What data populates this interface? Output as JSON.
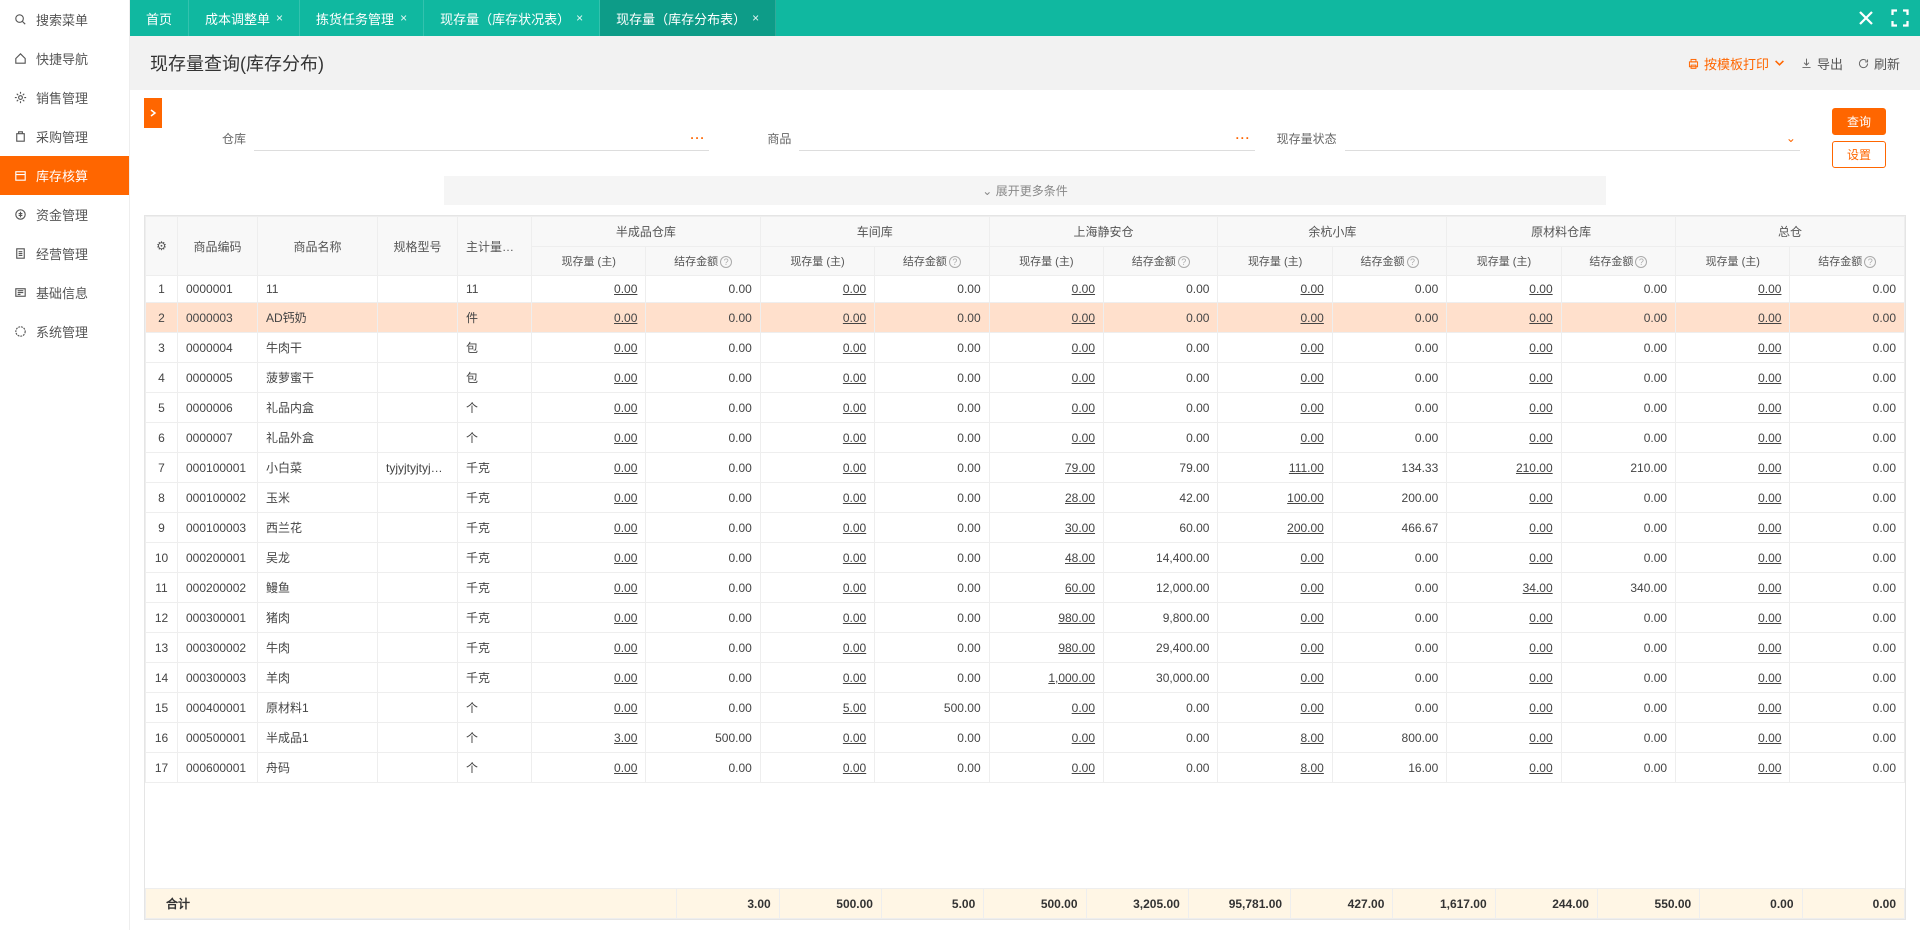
{
  "sidebar": {
    "items": [
      {
        "label": "搜索菜单",
        "icon": "search"
      },
      {
        "label": "快捷导航",
        "icon": "home"
      },
      {
        "label": "销售管理",
        "icon": "gear"
      },
      {
        "label": "采购管理",
        "icon": "bag"
      },
      {
        "label": "库存核算",
        "icon": "box",
        "active": true
      },
      {
        "label": "资金管理",
        "icon": "money"
      },
      {
        "label": "经营管理",
        "icon": "doc"
      },
      {
        "label": "基础信息",
        "icon": "info"
      },
      {
        "label": "系统管理",
        "icon": "sys"
      }
    ]
  },
  "tabs": {
    "items": [
      {
        "label": "首页",
        "closable": false
      },
      {
        "label": "成本调整单",
        "closable": true
      },
      {
        "label": "拣货任务管理",
        "closable": true
      },
      {
        "label": "现存量（库存状况表）",
        "closable": true
      },
      {
        "label": "现存量（库存分布表）",
        "closable": true,
        "active": true
      }
    ]
  },
  "header": {
    "title": "现存量查询(库存分布)",
    "print": "按模板打印",
    "export": "导出",
    "refresh": "刷新"
  },
  "filters": {
    "warehouse": "仓库",
    "product": "商品",
    "status": "现存量状态",
    "query": "查询",
    "settings": "设置",
    "expand": "展开更多条件"
  },
  "table": {
    "headers": {
      "code": "商品编码",
      "name": "商品名称",
      "spec": "规格型号",
      "unit": "主计量单位",
      "groups": [
        "半成品仓库",
        "车间库",
        "上海静安仓",
        "余杭小库",
        "原材料仓库",
        "总仓"
      ],
      "qty": "现存量 (主)",
      "amt": "结存金额"
    },
    "rows": [
      {
        "idx": 1,
        "code": "0000001",
        "name": "11",
        "spec": "",
        "unit": "11",
        "v": [
          [
            "0.00",
            "0.00"
          ],
          [
            "0.00",
            "0.00"
          ],
          [
            "0.00",
            "0.00"
          ],
          [
            "0.00",
            "0.00"
          ],
          [
            "0.00",
            "0.00"
          ],
          [
            "0.00",
            "0.00"
          ]
        ]
      },
      {
        "idx": 2,
        "code": "0000003",
        "name": "AD钙奶",
        "spec": "",
        "unit": "件",
        "hl": true,
        "v": [
          [
            "0.00",
            "0.00"
          ],
          [
            "0.00",
            "0.00"
          ],
          [
            "0.00",
            "0.00"
          ],
          [
            "0.00",
            "0.00"
          ],
          [
            "0.00",
            "0.00"
          ],
          [
            "0.00",
            "0.00"
          ]
        ]
      },
      {
        "idx": 3,
        "code": "0000004",
        "name": "牛肉干",
        "spec": "",
        "unit": "包",
        "v": [
          [
            "0.00",
            "0.00"
          ],
          [
            "0.00",
            "0.00"
          ],
          [
            "0.00",
            "0.00"
          ],
          [
            "0.00",
            "0.00"
          ],
          [
            "0.00",
            "0.00"
          ],
          [
            "0.00",
            "0.00"
          ]
        ]
      },
      {
        "idx": 4,
        "code": "0000005",
        "name": "菠萝蜜干",
        "spec": "",
        "unit": "包",
        "v": [
          [
            "0.00",
            "0.00"
          ],
          [
            "0.00",
            "0.00"
          ],
          [
            "0.00",
            "0.00"
          ],
          [
            "0.00",
            "0.00"
          ],
          [
            "0.00",
            "0.00"
          ],
          [
            "0.00",
            "0.00"
          ]
        ]
      },
      {
        "idx": 5,
        "code": "0000006",
        "name": "礼品内盒",
        "spec": "",
        "unit": "个",
        "v": [
          [
            "0.00",
            "0.00"
          ],
          [
            "0.00",
            "0.00"
          ],
          [
            "0.00",
            "0.00"
          ],
          [
            "0.00",
            "0.00"
          ],
          [
            "0.00",
            "0.00"
          ],
          [
            "0.00",
            "0.00"
          ]
        ]
      },
      {
        "idx": 6,
        "code": "0000007",
        "name": "礼品外盒",
        "spec": "",
        "unit": "个",
        "v": [
          [
            "0.00",
            "0.00"
          ],
          [
            "0.00",
            "0.00"
          ],
          [
            "0.00",
            "0.00"
          ],
          [
            "0.00",
            "0.00"
          ],
          [
            "0.00",
            "0.00"
          ],
          [
            "0.00",
            "0.00"
          ]
        ]
      },
      {
        "idx": 7,
        "code": "000100001",
        "name": "小白菜",
        "spec": "tyjyjtyjtyjdf...",
        "unit": "千克",
        "v": [
          [
            "0.00",
            "0.00"
          ],
          [
            "0.00",
            "0.00"
          ],
          [
            "79.00",
            "79.00"
          ],
          [
            "111.00",
            "134.33"
          ],
          [
            "210.00",
            "210.00"
          ],
          [
            "0.00",
            "0.00"
          ]
        ]
      },
      {
        "idx": 8,
        "code": "000100002",
        "name": "玉米",
        "spec": "",
        "unit": "千克",
        "v": [
          [
            "0.00",
            "0.00"
          ],
          [
            "0.00",
            "0.00"
          ],
          [
            "28.00",
            "42.00"
          ],
          [
            "100.00",
            "200.00"
          ],
          [
            "0.00",
            "0.00"
          ],
          [
            "0.00",
            "0.00"
          ]
        ]
      },
      {
        "idx": 9,
        "code": "000100003",
        "name": "西兰花",
        "spec": "",
        "unit": "千克",
        "v": [
          [
            "0.00",
            "0.00"
          ],
          [
            "0.00",
            "0.00"
          ],
          [
            "30.00",
            "60.00"
          ],
          [
            "200.00",
            "466.67"
          ],
          [
            "0.00",
            "0.00"
          ],
          [
            "0.00",
            "0.00"
          ]
        ]
      },
      {
        "idx": 10,
        "code": "000200001",
        "name": "吴龙",
        "spec": "",
        "unit": "千克",
        "v": [
          [
            "0.00",
            "0.00"
          ],
          [
            "0.00",
            "0.00"
          ],
          [
            "48.00",
            "14,400.00"
          ],
          [
            "0.00",
            "0.00"
          ],
          [
            "0.00",
            "0.00"
          ],
          [
            "0.00",
            "0.00"
          ]
        ]
      },
      {
        "idx": 11,
        "code": "000200002",
        "name": "鳗鱼",
        "spec": "",
        "unit": "千克",
        "v": [
          [
            "0.00",
            "0.00"
          ],
          [
            "0.00",
            "0.00"
          ],
          [
            "60.00",
            "12,000.00"
          ],
          [
            "0.00",
            "0.00"
          ],
          [
            "34.00",
            "340.00"
          ],
          [
            "0.00",
            "0.00"
          ]
        ]
      },
      {
        "idx": 12,
        "code": "000300001",
        "name": "猪肉",
        "spec": "",
        "unit": "千克",
        "v": [
          [
            "0.00",
            "0.00"
          ],
          [
            "0.00",
            "0.00"
          ],
          [
            "980.00",
            "9,800.00"
          ],
          [
            "0.00",
            "0.00"
          ],
          [
            "0.00",
            "0.00"
          ],
          [
            "0.00",
            "0.00"
          ]
        ]
      },
      {
        "idx": 13,
        "code": "000300002",
        "name": "牛肉",
        "spec": "",
        "unit": "千克",
        "v": [
          [
            "0.00",
            "0.00"
          ],
          [
            "0.00",
            "0.00"
          ],
          [
            "980.00",
            "29,400.00"
          ],
          [
            "0.00",
            "0.00"
          ],
          [
            "0.00",
            "0.00"
          ],
          [
            "0.00",
            "0.00"
          ]
        ]
      },
      {
        "idx": 14,
        "code": "000300003",
        "name": "羊肉",
        "spec": "",
        "unit": "千克",
        "v": [
          [
            "0.00",
            "0.00"
          ],
          [
            "0.00",
            "0.00"
          ],
          [
            "1,000.00",
            "30,000.00"
          ],
          [
            "0.00",
            "0.00"
          ],
          [
            "0.00",
            "0.00"
          ],
          [
            "0.00",
            "0.00"
          ]
        ]
      },
      {
        "idx": 15,
        "code": "000400001",
        "name": "原材料1",
        "spec": "",
        "unit": "个",
        "v": [
          [
            "0.00",
            "0.00"
          ],
          [
            "5.00",
            "500.00"
          ],
          [
            "0.00",
            "0.00"
          ],
          [
            "0.00",
            "0.00"
          ],
          [
            "0.00",
            "0.00"
          ],
          [
            "0.00",
            "0.00"
          ]
        ]
      },
      {
        "idx": 16,
        "code": "000500001",
        "name": "半成品1",
        "spec": "",
        "unit": "个",
        "v": [
          [
            "3.00",
            "500.00"
          ],
          [
            "0.00",
            "0.00"
          ],
          [
            "0.00",
            "0.00"
          ],
          [
            "8.00",
            "800.00"
          ],
          [
            "0.00",
            "0.00"
          ],
          [
            "0.00",
            "0.00"
          ]
        ]
      },
      {
        "idx": 17,
        "code": "000600001",
        "name": "舟码",
        "spec": "",
        "unit": "个",
        "v": [
          [
            "0.00",
            "0.00"
          ],
          [
            "0.00",
            "0.00"
          ],
          [
            "0.00",
            "0.00"
          ],
          [
            "8.00",
            "16.00"
          ],
          [
            "0.00",
            "0.00"
          ],
          [
            "0.00",
            "0.00"
          ]
        ]
      }
    ],
    "footer": {
      "label": "合计",
      "v": [
        "3.00",
        "500.00",
        "5.00",
        "500.00",
        "3,205.00",
        "95,781.00",
        "427.00",
        "1,617.00",
        "244.00",
        "550.00",
        "0.00",
        "0.00"
      ]
    }
  }
}
